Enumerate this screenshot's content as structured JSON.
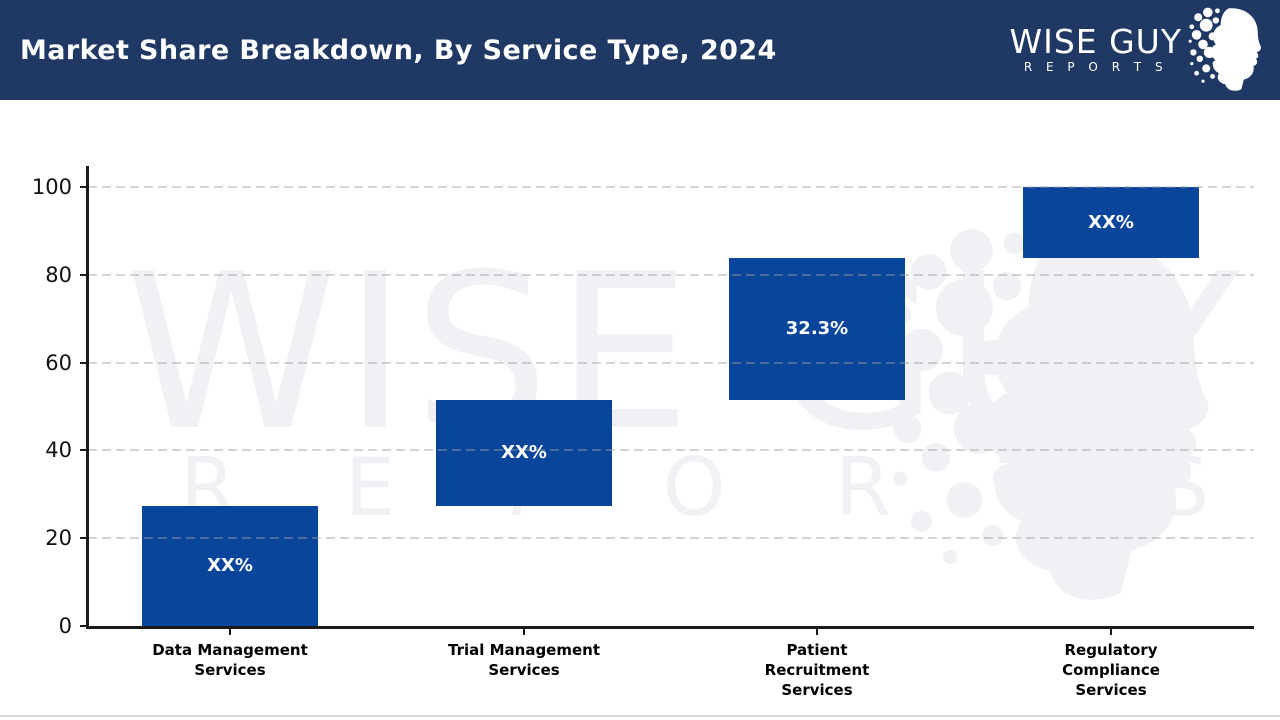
{
  "header": {
    "title": "Market Share Breakdown, By Service Type, 2024",
    "background_color": "#1f3864",
    "logo": {
      "line1": "WISE GUY",
      "line2": "R E P O R T S"
    }
  },
  "watermark": {
    "line1": "WISE GUY",
    "line2": "R E P O R T S"
  },
  "chart_data": {
    "type": "bar",
    "subtype": "floating-waterfall",
    "title": "Market Share Breakdown, By Service Type, 2024",
    "categories": [
      [
        "Data Management",
        "Services"
      ],
      [
        "Trial Management",
        "Services"
      ],
      [
        "Patient",
        "Recruitment",
        "Services"
      ],
      [
        "Regulatory",
        "Compliance",
        "Services"
      ]
    ],
    "bar_labels": [
      "XX%",
      "XX%",
      "32.3%",
      "XX%"
    ],
    "segments_pct": [
      [
        0,
        27.3
      ],
      [
        27.3,
        51.5
      ],
      [
        51.5,
        83.8
      ],
      [
        83.8,
        100
      ]
    ],
    "values_pct": [
      27.3,
      24.2,
      32.3,
      16.2
    ],
    "ylim": [
      0,
      100
    ],
    "yticks": [
      0,
      20,
      40,
      60,
      80,
      100
    ],
    "grid": "horizontal-dashed",
    "legend": "none",
    "bar_color": "#09459b",
    "bar_label_color": "#ffffff",
    "axis_color": "#1a1a1a",
    "tick_label_color": "#111111"
  }
}
